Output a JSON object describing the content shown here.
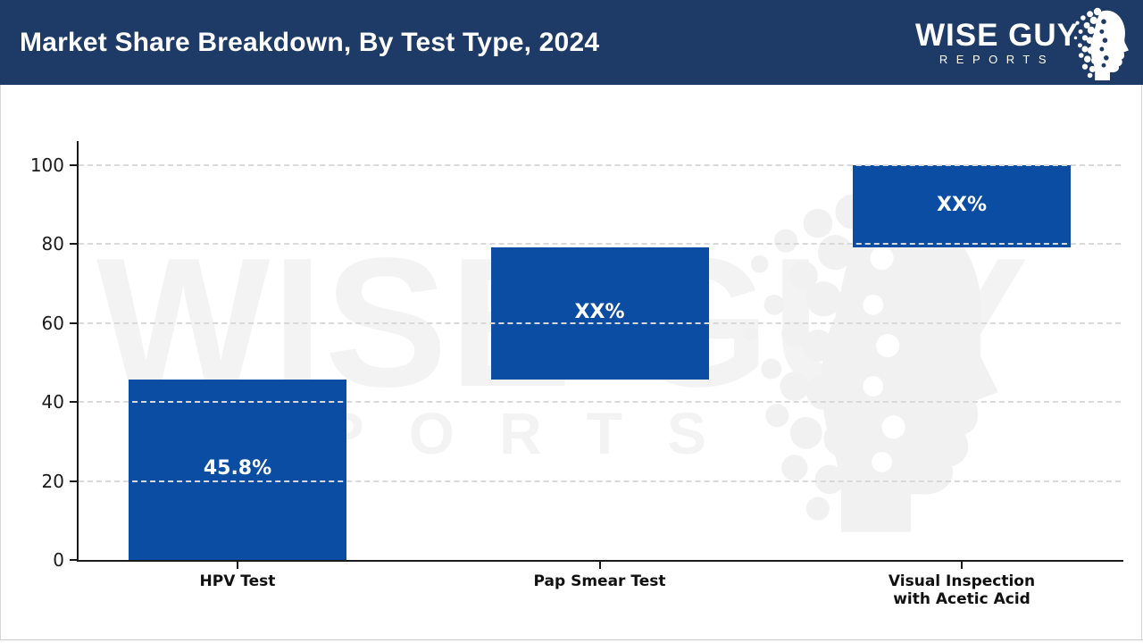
{
  "header": {
    "title": "Market Share Breakdown, By Test Type, 2024",
    "bg_color": "#1e3a66",
    "logo": {
      "line1": "WISE GUY",
      "line2": "REPORTS"
    }
  },
  "watermark": {
    "line1": "WISE GUY",
    "line2": "REPORTS"
  },
  "chart_data": {
    "type": "bar",
    "variant": "waterfall",
    "title": "Market Share Breakdown, By Test Type, 2024",
    "categories": [
      "HPV Test",
      "Pap Smear Test",
      "Visual Inspection with Acetic Acid"
    ],
    "segments": [
      {
        "category": "HPV Test",
        "start": 0,
        "end": 45.8,
        "label": "45.8%"
      },
      {
        "category": "Pap Smear Test",
        "start": 45.8,
        "end": 79.2,
        "label": "XX%"
      },
      {
        "category": "Visual Inspection with Acetic Acid",
        "start": 79.2,
        "end": 100,
        "label": "XX%"
      }
    ],
    "ylim": [
      0,
      100
    ],
    "yticks": [
      0,
      20,
      40,
      60,
      80,
      100
    ],
    "grid": "horizontal-dashed-over-bars",
    "legend": "none",
    "bar_color": "#0b4da2",
    "bar_label_color": "#ffffff",
    "axis_color": "#1a1a1a",
    "gridline_color": "#d9d9d9",
    "watermark_color": "#f3f3f3"
  }
}
